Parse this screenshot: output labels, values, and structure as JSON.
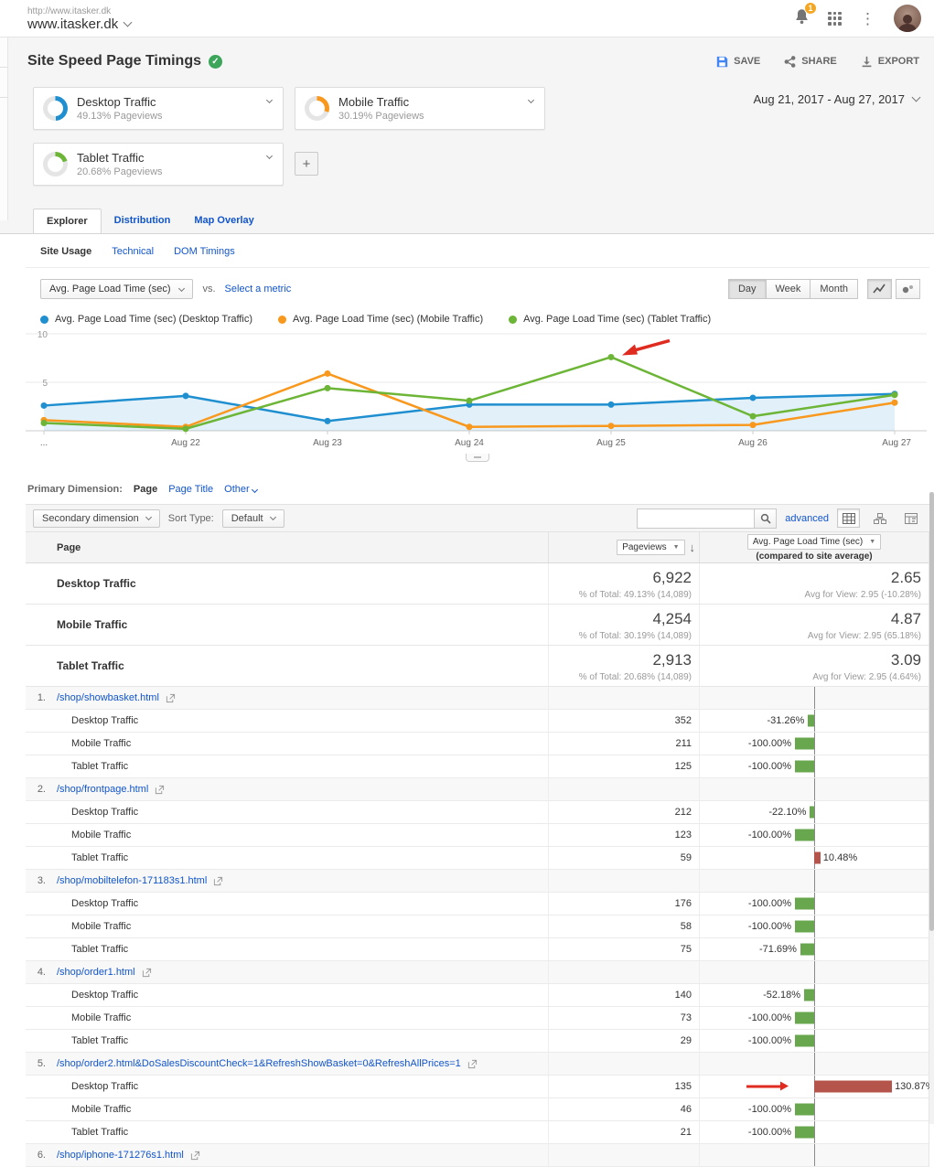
{
  "colors": {
    "link": "#1155cc",
    "negative_bar": "#69a74e",
    "positive_bar": "#b5544a",
    "arrow": "#e02b20",
    "desktop": "#1f8fd0",
    "mobile": "#f8981d",
    "tablet": "#6cb536"
  },
  "topbar": {
    "url": "http://www.itasker.dk",
    "site": "www.itasker.dk",
    "notification_count": "1"
  },
  "header": {
    "title": "Site Speed Page Timings",
    "actions": {
      "save": "SAVE",
      "share": "SHARE",
      "export": "EXPORT"
    }
  },
  "date_range": "Aug 21, 2017 - Aug 27, 2017",
  "segments": [
    {
      "name": "Desktop Traffic",
      "sub": "49.13% Pageviews",
      "pct": 49.13,
      "color": "#1f8fd0"
    },
    {
      "name": "Mobile Traffic",
      "sub": "30.19% Pageviews",
      "pct": 30.19,
      "color": "#f8981d"
    },
    {
      "name": "Tablet Traffic",
      "sub": "20.68% Pageviews",
      "pct": 20.68,
      "color": "#6cb536"
    }
  ],
  "tabs": [
    "Explorer",
    "Distribution",
    "Map Overlay"
  ],
  "subtabs": [
    "Site Usage",
    "Technical",
    "DOM Timings"
  ],
  "metric_bar": {
    "selected": "Avg. Page Load Time (sec)",
    "vs": "vs.",
    "select_label": "Select a metric",
    "granularity": [
      "Day",
      "Week",
      "Month"
    ],
    "active_granularity": "Day"
  },
  "chart_data": {
    "type": "line",
    "x": [
      "...",
      "Aug 22",
      "Aug 23",
      "Aug 24",
      "Aug 25",
      "Aug 26",
      "Aug 27"
    ],
    "ylim": [
      0,
      10
    ],
    "yticks": [
      5,
      10
    ],
    "series": [
      {
        "name": "Avg. Page Load Time (sec) (Desktop Traffic)",
        "color": "#1f8fd0",
        "values": [
          2.6,
          3.6,
          1.0,
          2.7,
          2.7,
          3.4,
          3.8
        ],
        "area": true
      },
      {
        "name": "Avg. Page Load Time (sec) (Mobile Traffic)",
        "color": "#f8981d",
        "values": [
          1.1,
          0.4,
          5.9,
          0.4,
          0.5,
          0.6,
          2.9
        ]
      },
      {
        "name": "Avg. Page Load Time (sec) (Tablet Traffic)",
        "color": "#6cb536",
        "values": [
          0.8,
          0.2,
          4.4,
          3.1,
          7.6,
          1.5,
          3.7
        ]
      }
    ],
    "annotation": "red arrow pointing at Tablet Traffic peak on Aug 25"
  },
  "primary_dimension": {
    "label": "Primary Dimension:",
    "options": [
      "Page",
      "Page Title",
      "Other"
    ],
    "active": "Page"
  },
  "table_controls": {
    "secondary": "Secondary dimension",
    "sort_label": "Sort Type:",
    "sort_value": "Default",
    "search_value": "",
    "advanced": "advanced"
  },
  "table": {
    "columns": {
      "page": "Page",
      "pageviews": "Pageviews",
      "metric": "Avg. Page Load Time (sec)",
      "metric_sub": "(compared to site average)"
    },
    "summary": [
      {
        "name": "Desktop Traffic",
        "pageviews": "6,922",
        "pv_sub": "% of Total: 49.13% (14,089)",
        "value": "2.65",
        "val_sub": "Avg for View: 2.95 (-10.28%)"
      },
      {
        "name": "Mobile Traffic",
        "pageviews": "4,254",
        "pv_sub": "% of Total: 30.19% (14,089)",
        "value": "4.87",
        "val_sub": "Avg for View: 2.95 (65.18%)"
      },
      {
        "name": "Tablet Traffic",
        "pageviews": "2,913",
        "pv_sub": "% of Total: 20.68% (14,089)",
        "value": "3.09",
        "val_sub": "Avg for View: 2.95 (4.64%)"
      }
    ],
    "rows": [
      {
        "num": "1.",
        "page": "/shop/showbasket.html",
        "segments": [
          {
            "name": "Desktop Traffic",
            "pageviews": "352",
            "pct": -31.26,
            "label": "-31.26%"
          },
          {
            "name": "Mobile Traffic",
            "pageviews": "211",
            "pct": -100.0,
            "label": "-100.00%"
          },
          {
            "name": "Tablet Traffic",
            "pageviews": "125",
            "pct": -100.0,
            "label": "-100.00%"
          }
        ]
      },
      {
        "num": "2.",
        "page": "/shop/frontpage.html",
        "segments": [
          {
            "name": "Desktop Traffic",
            "pageviews": "212",
            "pct": -22.1,
            "label": "-22.10%"
          },
          {
            "name": "Mobile Traffic",
            "pageviews": "123",
            "pct": -100.0,
            "label": "-100.00%"
          },
          {
            "name": "Tablet Traffic",
            "pageviews": "59",
            "pct": 10.48,
            "label": "10.48%"
          }
        ]
      },
      {
        "num": "3.",
        "page": "/shop/mobiltelefon-171183s1.html",
        "segments": [
          {
            "name": "Desktop Traffic",
            "pageviews": "176",
            "pct": -100.0,
            "label": "-100.00%"
          },
          {
            "name": "Mobile Traffic",
            "pageviews": "58",
            "pct": -100.0,
            "label": "-100.00%"
          },
          {
            "name": "Tablet Traffic",
            "pageviews": "75",
            "pct": -71.69,
            "label": "-71.69%"
          }
        ]
      },
      {
        "num": "4.",
        "page": "/shop/order1.html",
        "segments": [
          {
            "name": "Desktop Traffic",
            "pageviews": "140",
            "pct": -52.18,
            "label": "-52.18%"
          },
          {
            "name": "Mobile Traffic",
            "pageviews": "73",
            "pct": -100.0,
            "label": "-100.00%"
          },
          {
            "name": "Tablet Traffic",
            "pageviews": "29",
            "pct": -100.0,
            "label": "-100.00%"
          }
        ]
      },
      {
        "num": "5.",
        "page": "/shop/order2.html&DoSalesDiscountCheck=1&RefreshShowBasket=0&RefreshAllPrices=1",
        "segments": [
          {
            "name": "Desktop Traffic",
            "pageviews": "135",
            "pct": 130.87,
            "label": "130.87%",
            "arrow": true
          },
          {
            "name": "Mobile Traffic",
            "pageviews": "46",
            "pct": -100.0,
            "label": "-100.00%"
          },
          {
            "name": "Tablet Traffic",
            "pageviews": "21",
            "pct": -100.0,
            "label": "-100.00%"
          }
        ]
      },
      {
        "num": "6.",
        "page": "/shop/iphone-171276s1.html",
        "segments": []
      }
    ]
  }
}
